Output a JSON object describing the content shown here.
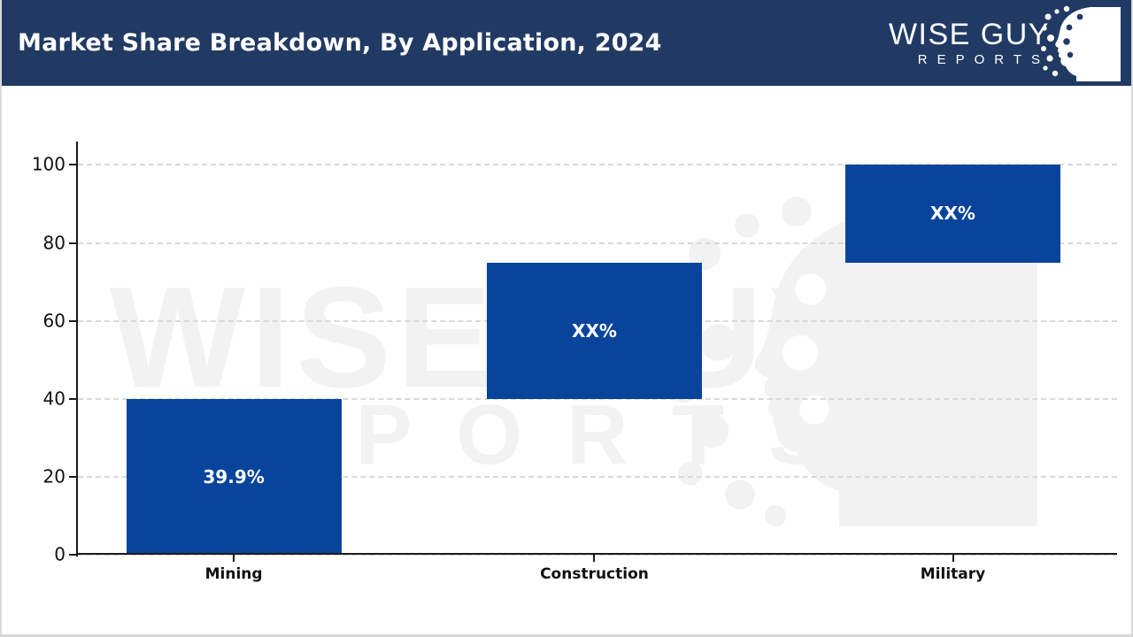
{
  "header": {
    "title": "Market Share Breakdown, By Application, 2024",
    "logo": {
      "line1": "WISE GUY",
      "line2": "REPORTS"
    },
    "bg_color": "#213a63"
  },
  "watermark": {
    "line1": "WISE GUY",
    "line2": "REPORTS"
  },
  "chart_data": {
    "type": "bar",
    "subtype": "floating-waterfall",
    "title": "Market Share Breakdown, By Application, 2024",
    "categories": [
      "Mining",
      "Construction",
      "Military"
    ],
    "segments": [
      {
        "category": "Mining",
        "start": 0,
        "end": 39.9,
        "label": "39.9%"
      },
      {
        "category": "Construction",
        "start": 40,
        "end": 75,
        "label": "XX%"
      },
      {
        "category": "Military",
        "start": 75,
        "end": 100,
        "label": "XX%"
      }
    ],
    "bar_color": "#08449c",
    "label_color": "#ffffff",
    "yticks": [
      0,
      20,
      40,
      60,
      80,
      100
    ],
    "ylim": [
      0,
      106
    ],
    "xlabel": "",
    "ylabel": "",
    "grid": "horizontal-dashed",
    "legend": "none"
  }
}
